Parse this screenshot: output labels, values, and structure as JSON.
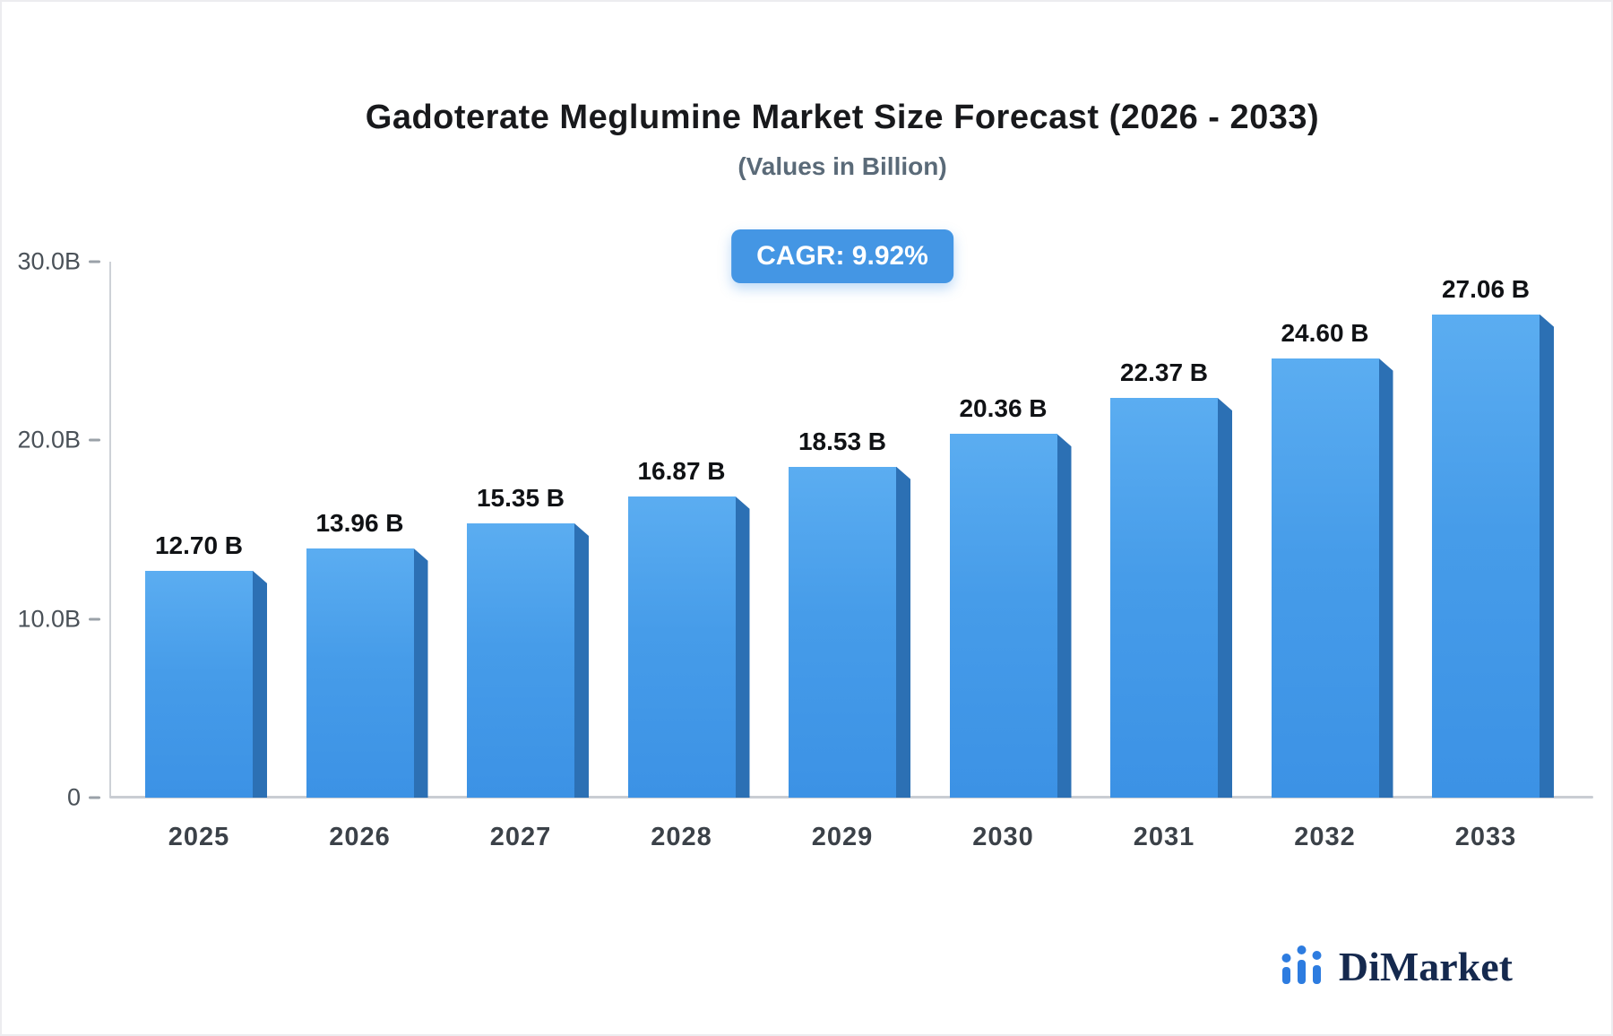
{
  "header": {
    "title": "Gadoterate Meglumine Market Size Forecast (2026 - 2033)",
    "subtitle": "(Values in Billion)",
    "cagr_label": "CAGR: 9.92%"
  },
  "brand": {
    "name": "DiMarket",
    "icon": "bar-chart-icon",
    "icon_color": "#2d7ce0",
    "text_color": "#15294e"
  },
  "chart_data": {
    "type": "bar",
    "title": "Gadoterate Meglumine Market Size Forecast (2026 - 2033)",
    "subtitle": "(Values in Billion)",
    "categories": [
      "2025",
      "2026",
      "2027",
      "2028",
      "2029",
      "2030",
      "2031",
      "2032",
      "2033"
    ],
    "values": [
      12.7,
      13.96,
      15.35,
      16.87,
      18.53,
      20.36,
      22.37,
      24.6,
      27.06
    ],
    "value_labels": [
      "12.70 B",
      "13.96 B",
      "15.35 B",
      "16.87 B",
      "18.53 B",
      "20.36 B",
      "22.37 B",
      "24.60 B",
      "27.06 B"
    ],
    "unit": "Billion",
    "cagr": "9.92%",
    "xlabel": "",
    "ylabel": "",
    "ylim": [
      0,
      30
    ],
    "yticks": [
      {
        "value": 30,
        "label": "30.0B"
      },
      {
        "value": 20,
        "label": "20.0B"
      },
      {
        "value": 10,
        "label": "10.0B"
      },
      {
        "value": 0,
        "label": "0"
      }
    ],
    "grid": false,
    "legend": false,
    "bar_color_top": "#5badf1",
    "bar_color_bottom": "#3c92e5",
    "bar_side_color": "#2c70b4",
    "badge_color": "#4496e4"
  }
}
